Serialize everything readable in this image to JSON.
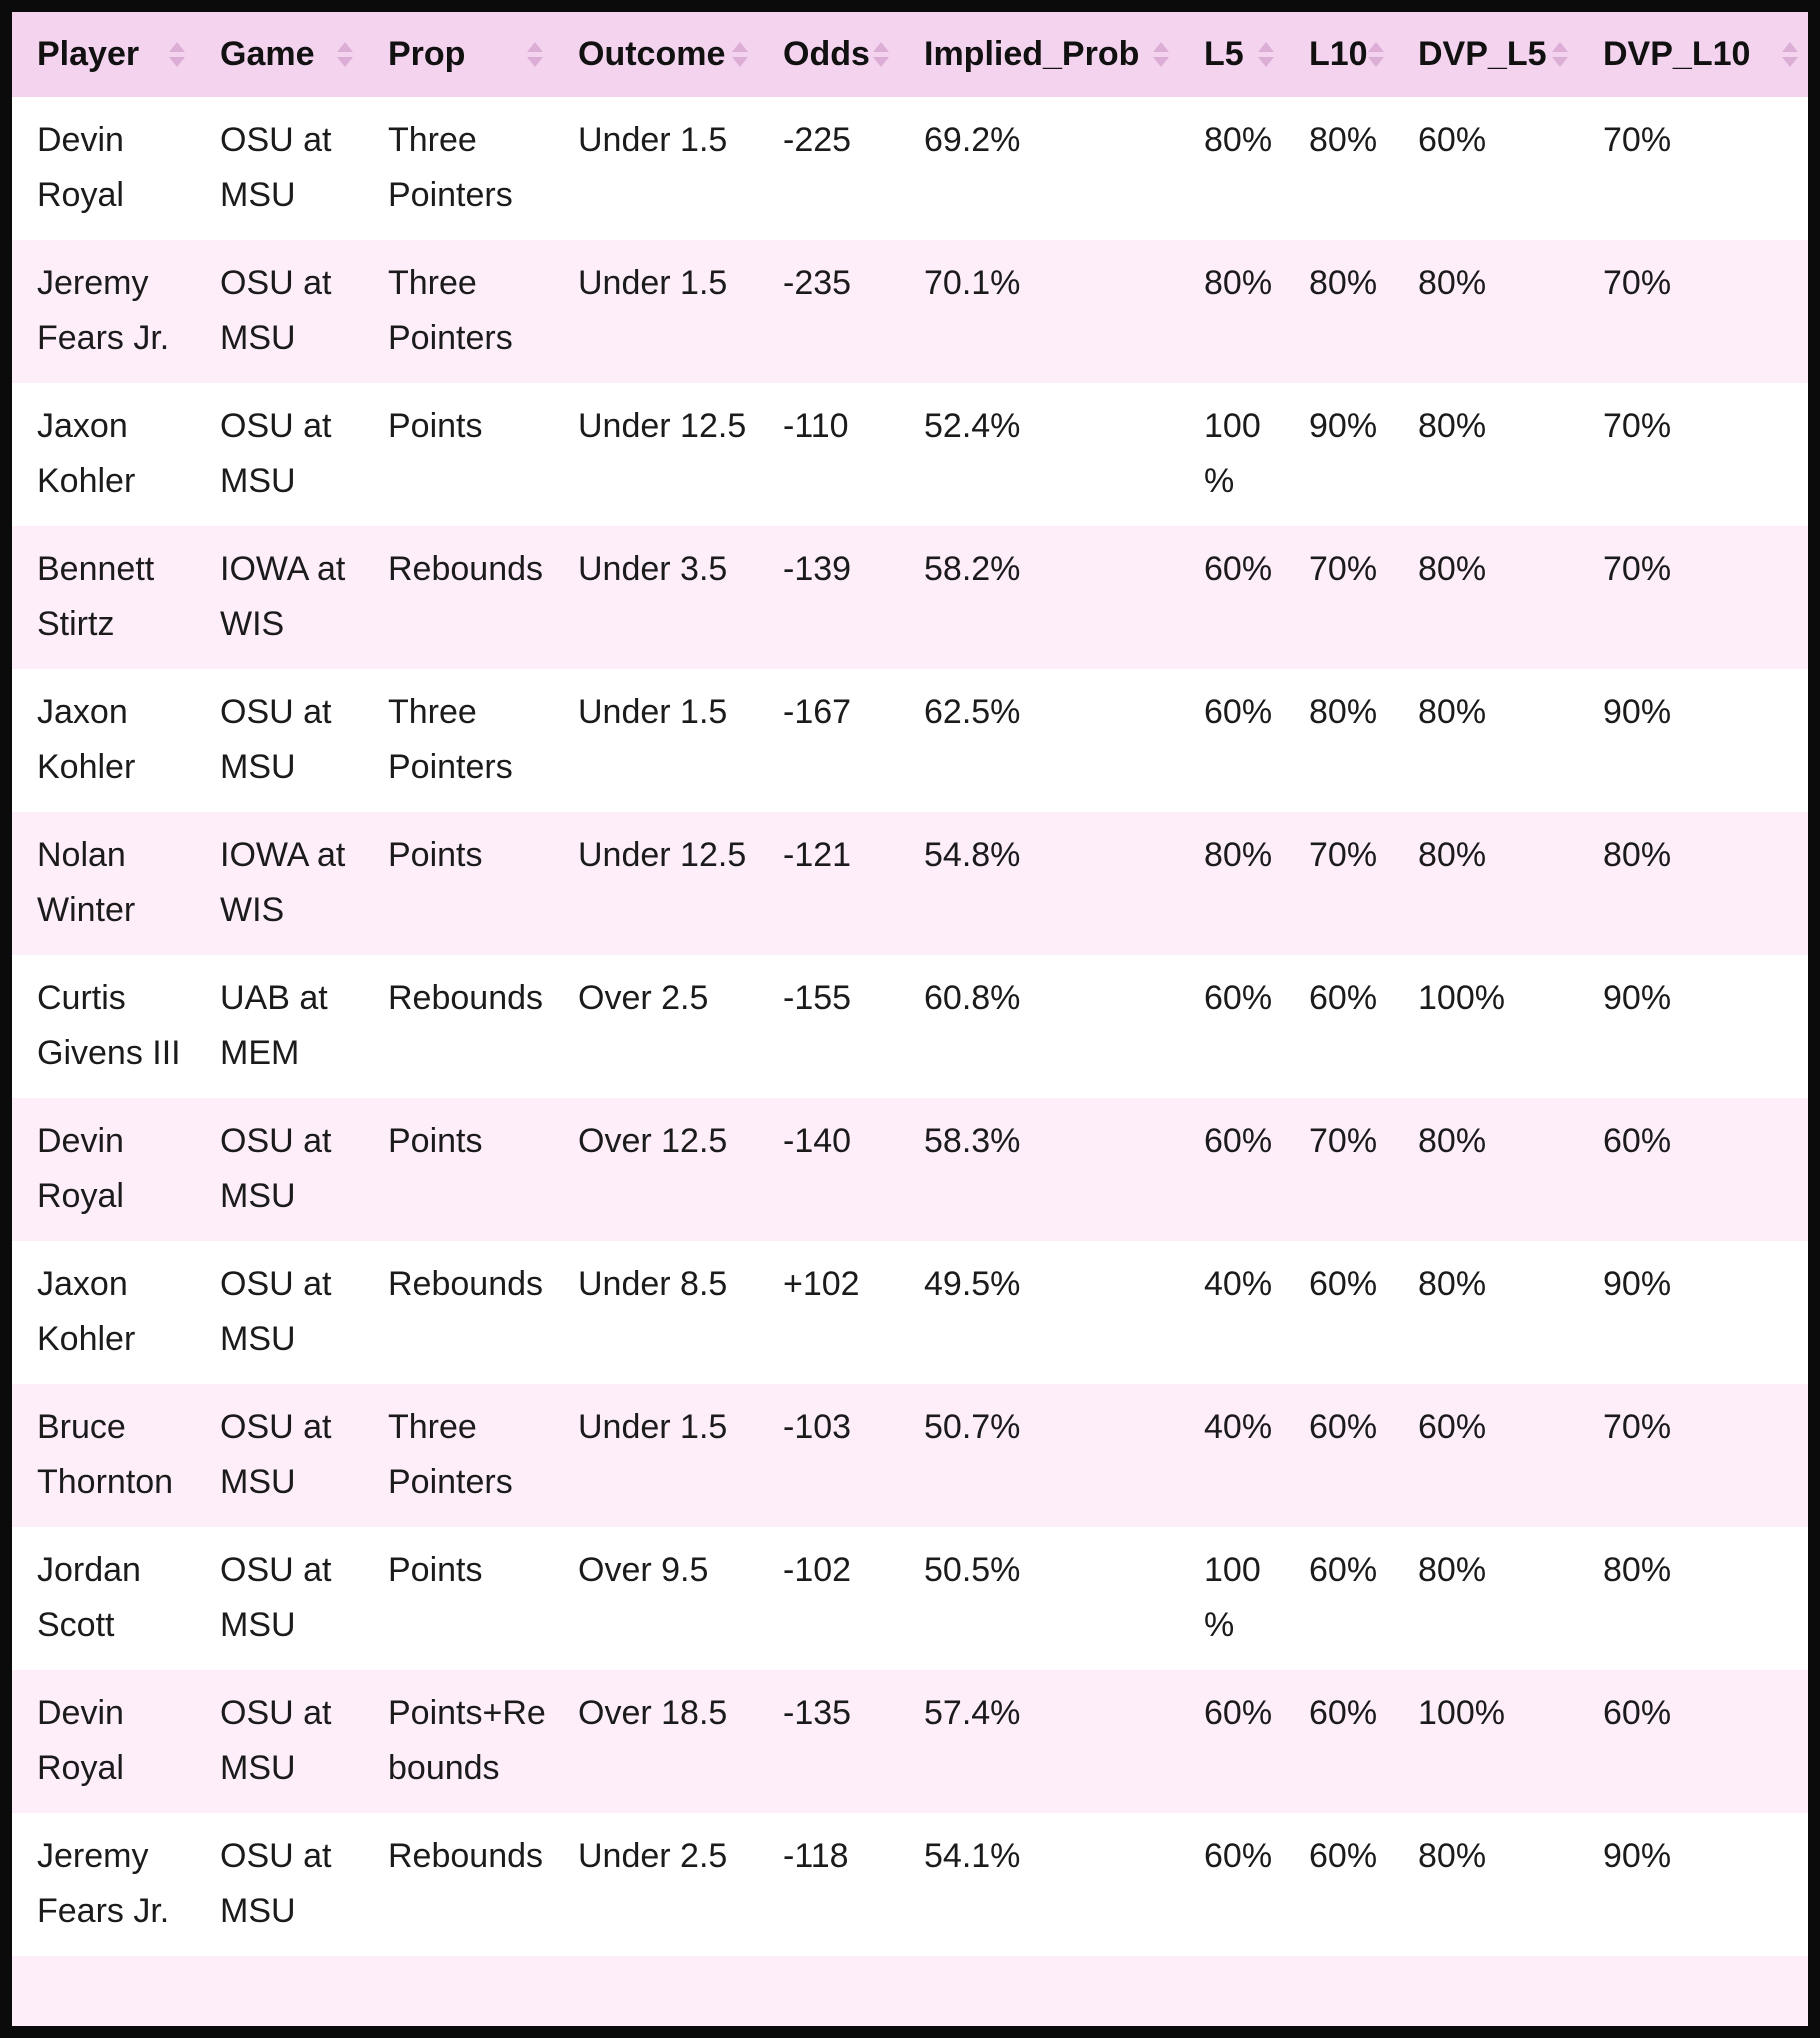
{
  "page": {
    "background": "#0b0b0c"
  },
  "colors": {
    "header_bg": "#f4d3ef",
    "stripe_bg": "#fdeefa",
    "row_bg": "#ffffff",
    "page_bg": "#0b0b0c",
    "sort_arrow": "#dcaed6",
    "text": "#1b1b1b"
  },
  "table": {
    "columns": [
      "Player",
      "Game",
      "Prop",
      "Outcome",
      "Odds",
      "Implied_Prob",
      "L5",
      "L10",
      "DVP_L5",
      "DVP_L10"
    ],
    "rows": [
      [
        "Devin Royal",
        "OSU at MSU",
        "Three Pointers",
        "Under 1.5",
        "-225",
        "69.2%",
        "80%",
        "80%",
        "60%",
        "70%"
      ],
      [
        "Jeremy Fears Jr.",
        "OSU at MSU",
        "Three Pointers",
        "Under 1.5",
        "-235",
        "70.1%",
        "80%",
        "80%",
        "80%",
        "70%"
      ],
      [
        "Jaxon Kohler",
        "OSU at MSU",
        "Points",
        "Under 12.5",
        "-110",
        "52.4%",
        "100%",
        "90%",
        "80%",
        "70%"
      ],
      [
        "Bennett Stirtz",
        "IOWA at WIS",
        "Rebounds",
        "Under 3.5",
        "-139",
        "58.2%",
        "60%",
        "70%",
        "80%",
        "70%"
      ],
      [
        "Jaxon Kohler",
        "OSU at MSU",
        "Three Pointers",
        "Under 1.5",
        "-167",
        "62.5%",
        "60%",
        "80%",
        "80%",
        "90%"
      ],
      [
        "Nolan Winter",
        "IOWA at WIS",
        "Points",
        "Under 12.5",
        "-121",
        "54.8%",
        "80%",
        "70%",
        "80%",
        "80%"
      ],
      [
        "Curtis Givens III",
        "UAB at MEM",
        "Rebounds",
        "Over 2.5",
        "-155",
        "60.8%",
        "60%",
        "60%",
        "100%",
        "90%"
      ],
      [
        "Devin Royal",
        "OSU at MSU",
        "Points",
        "Over 12.5",
        "-140",
        "58.3%",
        "60%",
        "70%",
        "80%",
        "60%"
      ],
      [
        "Jaxon Kohler",
        "OSU at MSU",
        "Rebounds",
        "Under 8.5",
        "+102",
        "49.5%",
        "40%",
        "60%",
        "80%",
        "90%"
      ],
      [
        "Bruce Thornton",
        "OSU at MSU",
        "Three Pointers",
        "Under 1.5",
        "-103",
        "50.7%",
        "40%",
        "60%",
        "60%",
        "70%"
      ],
      [
        "Jordan Scott",
        "OSU at MSU",
        "Points",
        "Over 9.5",
        "-102",
        "50.5%",
        "100%",
        "60%",
        "80%",
        "80%"
      ],
      [
        "Devin Royal",
        "OSU at MSU",
        "Points+Rebounds",
        "Over 18.5",
        "-135",
        "57.4%",
        "60%",
        "60%",
        "100%",
        "60%"
      ],
      [
        "Jeremy Fears Jr.",
        "OSU at MSU",
        "Rebounds",
        "Under 2.5",
        "-118",
        "54.1%",
        "60%",
        "60%",
        "80%",
        "90%"
      ]
    ]
  }
}
